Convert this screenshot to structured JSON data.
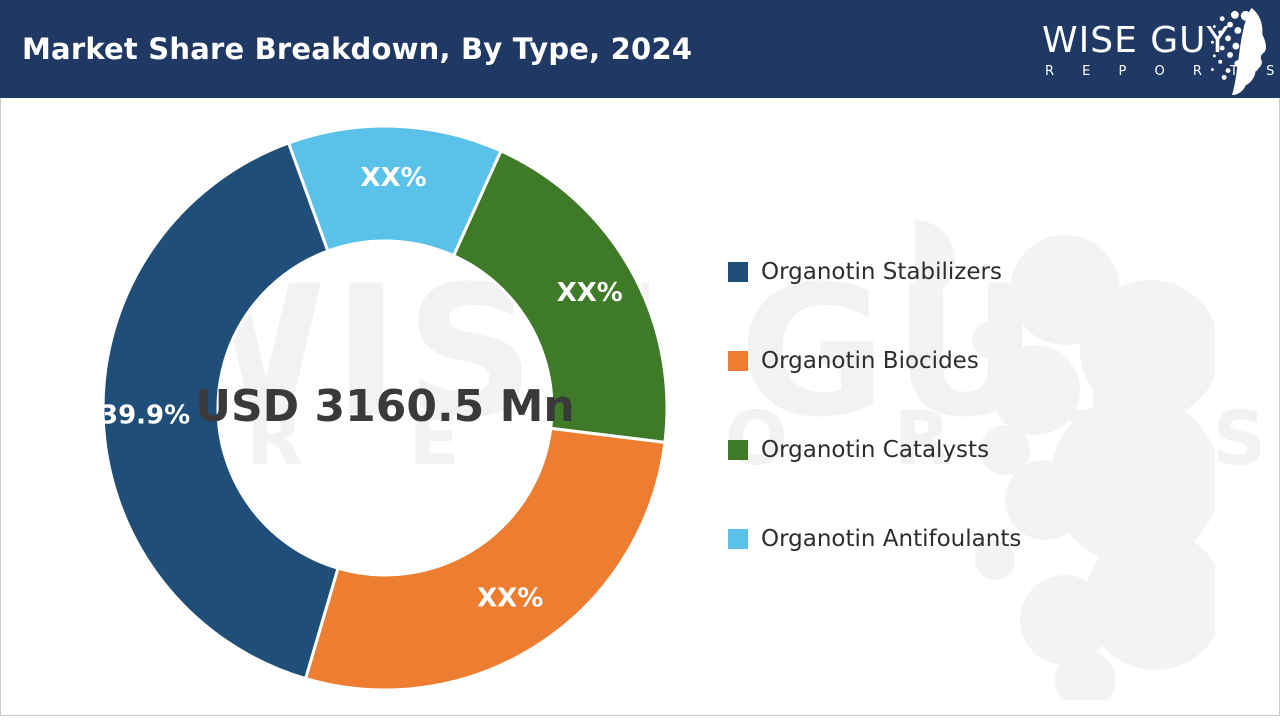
{
  "header": {
    "title": "Market Share Breakdown, By Type, 2024",
    "logo": {
      "line1": "WISE GUY",
      "line2": "R E P O R T S"
    }
  },
  "chart_data": {
    "type": "pie",
    "subtype": "donut",
    "title": "Market Share Breakdown, By Type, 2024",
    "center_label": "USD 3160.5 Mn",
    "start_angle_deg": 110,
    "direction": "clockwise",
    "legend_position": "right",
    "outer_radius": 282,
    "inner_radius": 167,
    "segments": [
      {
        "label": "Organotin Antifoulants",
        "value_pct": 12.3,
        "data_label": "XX%",
        "color": "#5ac1e8",
        "label_radius": 230
      },
      {
        "label": "Organotin Catalysts",
        "value_pct": 20.2,
        "data_label": "XX%",
        "color": "#3e7a27",
        "label_radius": 235
      },
      {
        "label": "Organotin Biocides",
        "value_pct": 27.6,
        "data_label": "XX%",
        "color": "#ed7d31",
        "label_radius": 228
      },
      {
        "label": "Organotin Stabilizers",
        "value_pct": 39.9,
        "data_label": "39.9%",
        "color": "#1f4e79",
        "label_radius": 240
      }
    ]
  },
  "legend": {
    "items": [
      {
        "label": "Organotin Stabilizers",
        "color": "#1f4e79"
      },
      {
        "label": "Organotin Biocides",
        "color": "#ed7d31"
      },
      {
        "label": "Organotin Catalysts",
        "color": "#3e7a27"
      },
      {
        "label": "Organotin Antifoulants",
        "color": "#5ac1e8"
      }
    ]
  },
  "watermark": {
    "line1": "WISE GUY",
    "line2": "R E P O R T S"
  }
}
